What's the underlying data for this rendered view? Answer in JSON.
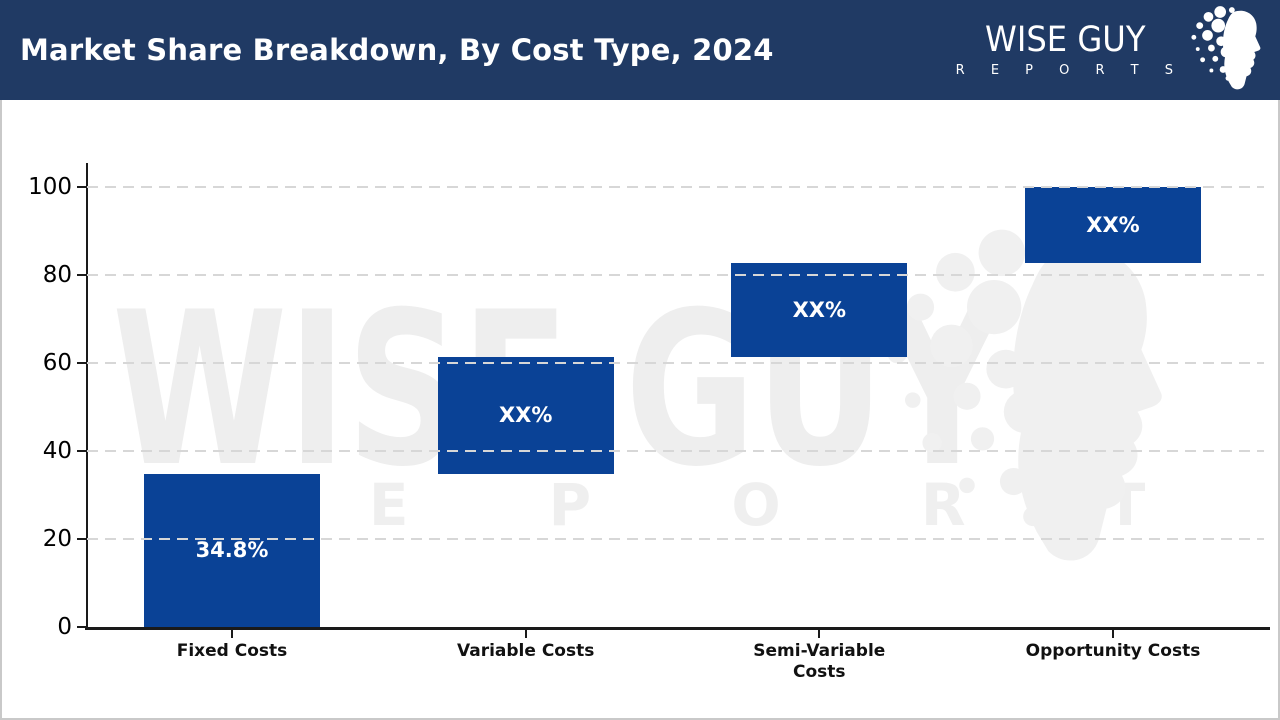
{
  "page": {
    "title": "Market Share Breakdown, By Cost Type, 2024",
    "header_bg": "#203a64",
    "logo": {
      "name": "WISE GUY",
      "subtitle": "R E P O R T S",
      "icon": "dotted-face-profile-icon"
    }
  },
  "watermark": {
    "line1": "WISE GUY",
    "line2": "R E P O R T S"
  },
  "chart_data": {
    "type": "bar",
    "variant": "waterfall",
    "title": "Market Share Breakdown, By Cost Type, 2024",
    "categories": [
      "Fixed Costs",
      "Variable Costs",
      "Semi-Variable\nCosts",
      "Opportunity Costs"
    ],
    "bar_labels": [
      "34.8%",
      "XX%",
      "XX%",
      "XX%"
    ],
    "values": [
      34.8,
      26.6,
      21.3,
      17.3
    ],
    "segments": [
      {
        "category": "Fixed Costs",
        "start": 0,
        "end": 34.8,
        "label": "34.8%"
      },
      {
        "category": "Variable Costs",
        "start": 34.8,
        "end": 61.4,
        "label": "XX%"
      },
      {
        "category": "Semi-Variable\nCosts",
        "start": 61.4,
        "end": 82.7,
        "label": "XX%"
      },
      {
        "category": "Opportunity Costs",
        "start": 82.7,
        "end": 100,
        "label": "XX%"
      }
    ],
    "xlabel": "",
    "ylabel": "",
    "ylim": [
      0,
      105
    ],
    "yticks": [
      0,
      20,
      40,
      60,
      80,
      100
    ],
    "grid": "horizontal-dashed",
    "legend": "none",
    "bar_color": "#0a4296",
    "bar_label_color": "#ffffff",
    "axis_color": "#1a1a1a",
    "gridline_color": "#d7d7d7"
  }
}
